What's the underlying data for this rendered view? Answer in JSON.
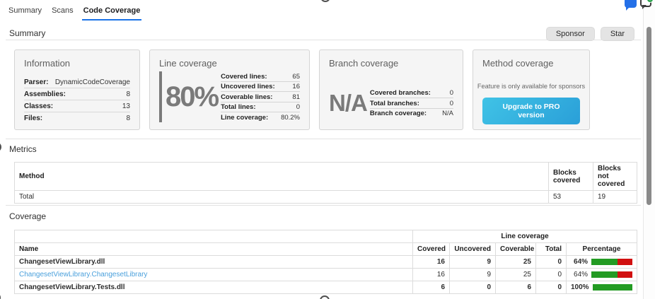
{
  "tabs": {
    "items": [
      {
        "label": "Summary"
      },
      {
        "label": "Scans"
      },
      {
        "label": "Code Coverage"
      }
    ],
    "active": "Code Coverage"
  },
  "header_icons": {
    "feedback": "chat-bubble-filled",
    "add_comment": "chat-bubble-with-plus"
  },
  "summary": {
    "heading": "Summary",
    "buttons": {
      "sponsor": "Sponsor",
      "star": "Star"
    },
    "cards": {
      "information": {
        "title": "Information",
        "rows": [
          {
            "label": "Parser:",
            "value": "DynamicCodeCoverage"
          },
          {
            "label": "Assemblies:",
            "value": "8"
          },
          {
            "label": "Classes:",
            "value": "13"
          },
          {
            "label": "Files:",
            "value": "8"
          }
        ]
      },
      "line_coverage": {
        "title": "Line coverage",
        "big_value": "80%",
        "rows": [
          {
            "label": "Covered lines:",
            "value": "65"
          },
          {
            "label": "Uncovered lines:",
            "value": "16"
          },
          {
            "label": "Coverable lines:",
            "value": "81"
          },
          {
            "label": "Total lines:",
            "value": "0"
          },
          {
            "label": "Line coverage:",
            "value": "80.2%"
          }
        ]
      },
      "branch_coverage": {
        "title": "Branch coverage",
        "big_value": "N/A",
        "rows": [
          {
            "label": "Covered branches:",
            "value": "0"
          },
          {
            "label": "Total branches:",
            "value": "0"
          },
          {
            "label": "Branch coverage:",
            "value": "N/A"
          }
        ]
      },
      "method_coverage": {
        "title": "Method coverage",
        "note": "Feature is only available for sponsors",
        "button_label": "Upgrade to PRO version"
      }
    }
  },
  "metrics": {
    "heading": "Metrics",
    "table": {
      "headers": [
        "Method",
        "Blocks covered",
        "Blocks not covered"
      ],
      "rows": [
        {
          "method": "Total",
          "blocks_covered": "53",
          "blocks_not_covered": "19"
        }
      ]
    }
  },
  "coverage": {
    "heading": "Coverage",
    "group_header": "Line coverage",
    "headers": [
      "Name",
      "Covered",
      "Uncovered",
      "Coverable",
      "Total",
      "Percentage"
    ],
    "rows": [
      {
        "name": "ChangesetViewLibrary.dll",
        "covered": "16",
        "uncovered": "9",
        "coverable": "25",
        "total": "0",
        "percentage": "64%",
        "pct": 64
      },
      {
        "name": "ChangesetViewLibrary.ChangesetLibrary",
        "covered": "16",
        "uncovered": "9",
        "coverable": "25",
        "total": "0",
        "percentage": "64%",
        "pct": 64
      },
      {
        "name": "ChangesetViewLibrary.Tests.dll",
        "covered": "6",
        "uncovered": "0",
        "coverable": "6",
        "total": "0",
        "percentage": "100%",
        "pct": 100
      }
    ]
  },
  "colors": {
    "accent": "#1a73e8",
    "link": "#4aa0dc",
    "covered_green": "#239b23",
    "uncovered_red": "#d11010"
  }
}
